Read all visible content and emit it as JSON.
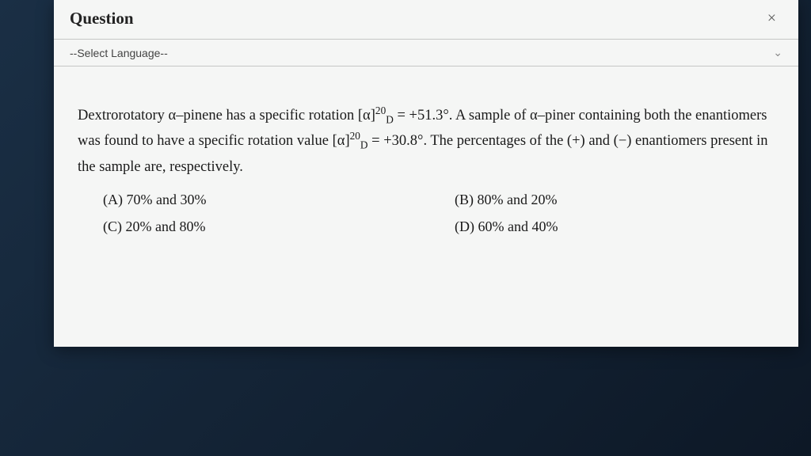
{
  "card": {
    "title": "Question",
    "close_glyph": "×",
    "language_placeholder": "--Select Language--",
    "chevron_glyph": "⌄"
  },
  "question": {
    "line1_pre": "Dextrorotatory α–pinene has a specific rotation ",
    "rotation1_open": "[α]",
    "rotation1_sup": "20",
    "rotation1_sub": "D",
    "rotation1_val": " = +51.3°. ",
    "line1_post": "A sample of α–piner",
    "line2_pre": "containing both the enantiomers was found to have a specific rotation value ",
    "rotation2_open": "[α]",
    "rotation2_sup": "20",
    "rotation2_sub": "D",
    "rotation2_val": " = ",
    "line3": "+30.8°. The percentages of the (+) and (−) enantiomers present in the sample are, respectively."
  },
  "options": {
    "a": "(A) 70% and 30%",
    "b": "(B) 80% and 20%",
    "c": "(C) 20% and 80%",
    "d": "(D) 60% and 40%"
  },
  "colors": {
    "card_bg": "#f5f6f5",
    "border": "#c5c7c5",
    "text": "#1a1a1a",
    "page_bg_dark": "#0d1826"
  }
}
